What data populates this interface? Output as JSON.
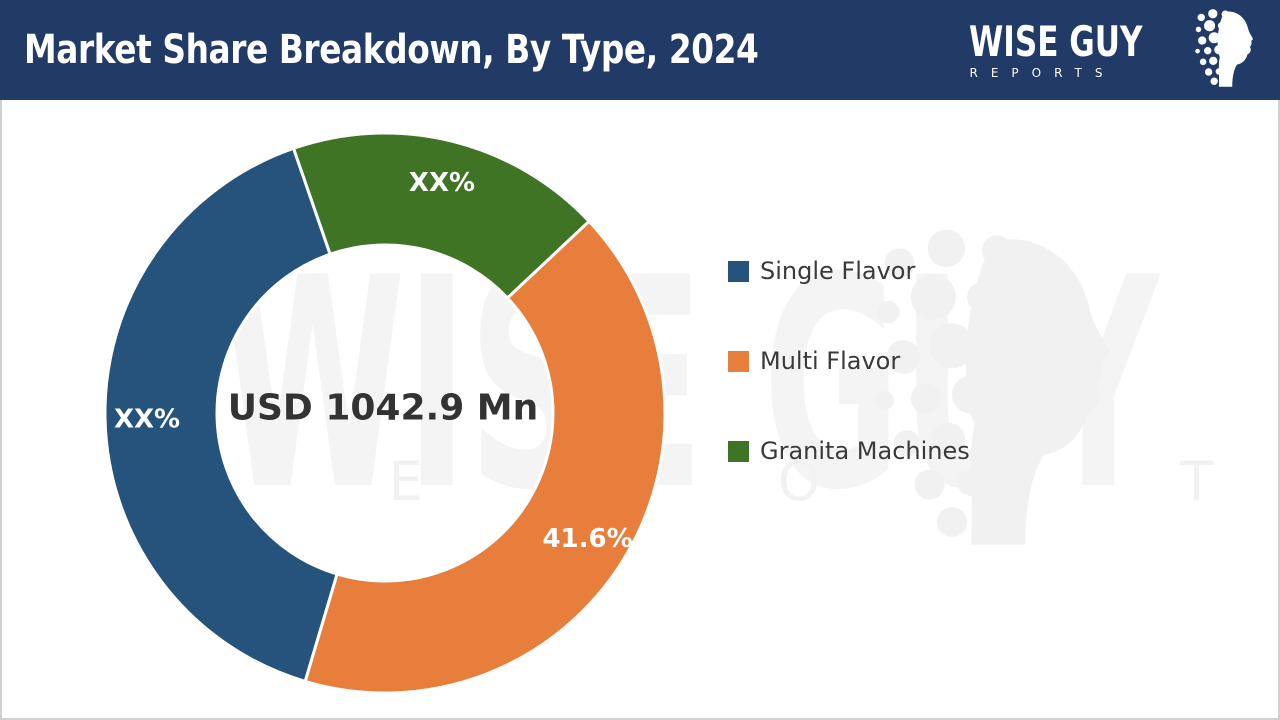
{
  "header": {
    "title": "Market Share Breakdown, By Type, 2024",
    "logo": {
      "wordmark": "WISE GUY",
      "tagline": "REPORTS"
    }
  },
  "chart_data": {
    "type": "pie",
    "variant": "donut",
    "title": "Market Share Breakdown, By Type, 2024",
    "center_label": "USD 1042.9 Mn",
    "start_angle_deg": 43.2,
    "direction": "counterclockwise",
    "hole_ratio": 0.6,
    "legend_position": "right",
    "segments": [
      {
        "name": "Granita Machines",
        "value_pct": 18.3,
        "displayed_label": "XX%",
        "color": "#3e7423"
      },
      {
        "name": "Single Flavor",
        "value_pct": 40.1,
        "displayed_label": "XX%",
        "color": "#25537b"
      },
      {
        "name": "Multi Flavor",
        "value_pct": 41.6,
        "displayed_label": "41.6%",
        "color": "#e87e3c"
      }
    ],
    "legend": [
      {
        "label": "Single Flavor",
        "color": "#25537b"
      },
      {
        "label": "Multi Flavor",
        "color": "#e87e3c"
      },
      {
        "label": "Granita Machines",
        "color": "#3e7423"
      }
    ]
  },
  "watermark": {
    "wordmark": "WISE GUY",
    "tagline": "R E P O R T S"
  },
  "colors": {
    "header_bg": "#213a66",
    "frame_border": "#d0d0d0",
    "center_text": "#333333",
    "legend_text": "#3a3a3a",
    "watermark": "#f2f2f2"
  }
}
